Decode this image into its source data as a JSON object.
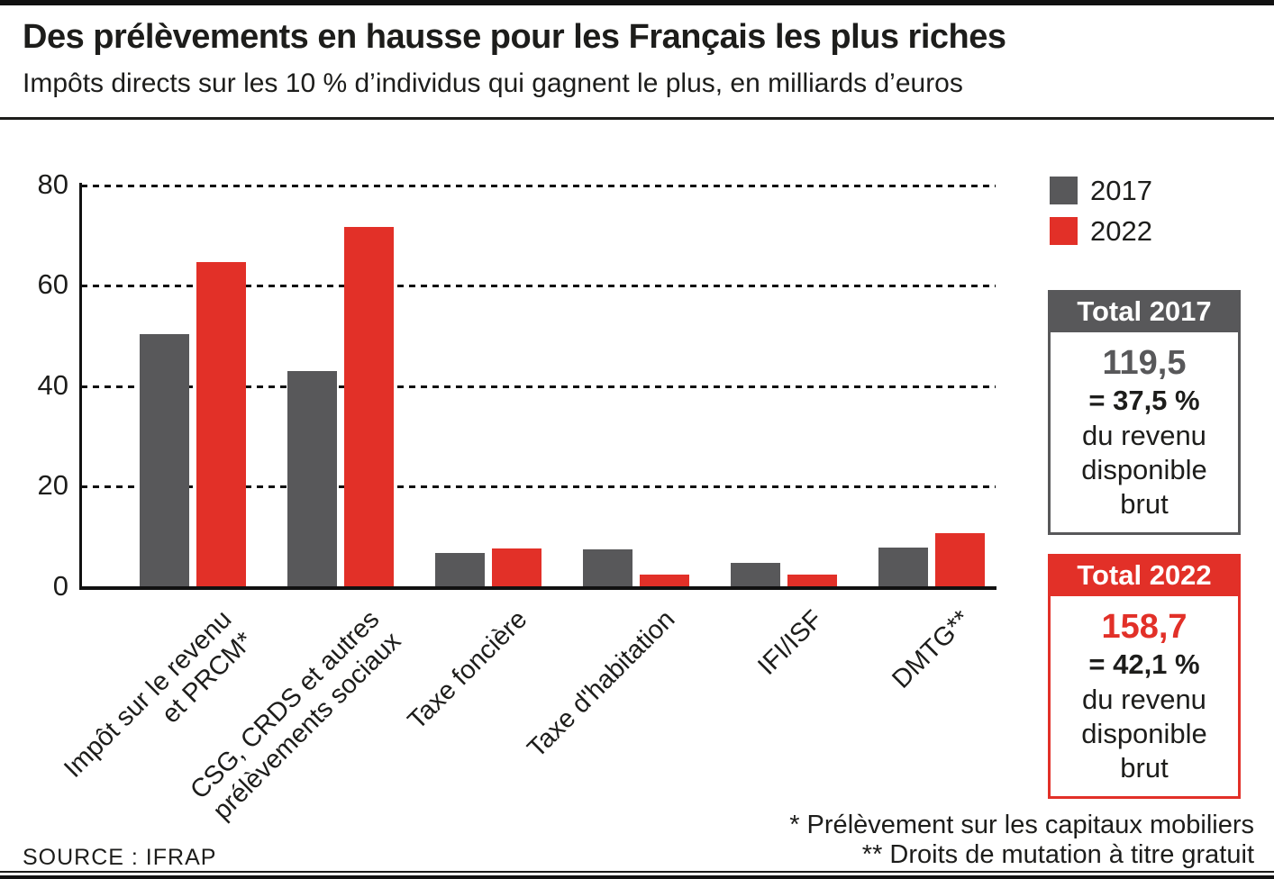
{
  "chart_data": {
    "type": "bar",
    "title": "Des prélèvements en hausse pour les Français les plus riches",
    "subtitle": "Impôts directs sur les 10 % d’individus qui gagnent le plus, en milliards d’euros",
    "unit": "milliards d'euros",
    "categories": [
      "Impôt sur le revenu et PRCM*",
      "CSG, CRDS et autres prélèvements sociaux",
      "Taxe foncière",
      "Taxe d'habitation",
      "IFI/ISF",
      "DMTG**"
    ],
    "category_lines": [
      [
        "Impôt sur le revenu",
        "et PRCM*"
      ],
      [
        "CSG, CRDS et autres",
        "prélèvements sociaux"
      ],
      [
        "Taxe foncière"
      ],
      [
        "Taxe d'habitation"
      ],
      [
        "IFI/ISF"
      ],
      [
        "DMTG**"
      ]
    ],
    "series": [
      {
        "name": "2017",
        "color": "#58585a",
        "values": [
          50.3,
          42.9,
          6.6,
          7.3,
          4.6,
          7.8
        ]
      },
      {
        "name": "2022",
        "color": "#e23028",
        "values": [
          64.5,
          71.5,
          7.5,
          2.3,
          2.3,
          10.6
        ]
      }
    ],
    "ylim": [
      0,
      80
    ],
    "yticks": [
      0,
      20,
      40,
      60,
      80
    ],
    "grid": "horizontal-dashed",
    "legend_position": "top-right"
  },
  "totals": [
    {
      "title": "Total 2017",
      "value": "119,5",
      "equals": "= 37,5 %",
      "caption": "du revenu disponible brut",
      "color": "#58585a"
    },
    {
      "title": "Total 2022",
      "value": "158,7",
      "equals": "= 42,1 %",
      "caption": "du revenu disponible brut",
      "color": "#e23028"
    }
  ],
  "footnotes": [
    "* Prélèvement sur les capitaux mobiliers",
    "** Droits de mutation à titre gratuit"
  ],
  "source": "SOURCE : IFRAP",
  "colors": {
    "gray": "#58585a",
    "red": "#e23028",
    "text": "#1d1d1b"
  }
}
